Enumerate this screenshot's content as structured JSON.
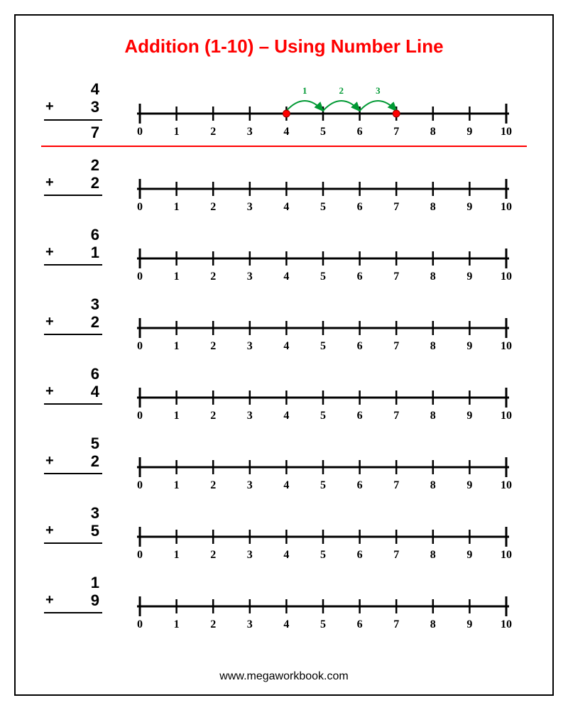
{
  "title": "Addition (1-10) – Using Number Line",
  "footer": "www.megaworkbook.com",
  "colors": {
    "title": "#ff0000",
    "divider": "#ff0000",
    "line": "#000000",
    "jump_arc": "#009933",
    "jump_label": "#009933",
    "dot": "#ff0000",
    "background": "#ffffff"
  },
  "number_line": {
    "min": 0,
    "max": 10,
    "tick_step": 1,
    "line_width": 3,
    "tick_half_height": 10,
    "label_fontsize": 16
  },
  "example": {
    "a": 4,
    "b": 3,
    "answer": 7,
    "jump_start": 4,
    "jump_end": 7,
    "jump_labels": [
      "1",
      "2",
      "3"
    ],
    "dot_radius": 5
  },
  "problems": [
    {
      "a": 2,
      "b": 2
    },
    {
      "a": 6,
      "b": 1
    },
    {
      "a": 3,
      "b": 2
    },
    {
      "a": 6,
      "b": 4
    },
    {
      "a": 5,
      "b": 2
    },
    {
      "a": 3,
      "b": 5
    },
    {
      "a": 1,
      "b": 9
    }
  ],
  "typography": {
    "title_fontsize": 26,
    "problem_fontsize": 22,
    "footer_fontsize": 16,
    "font_family": "Comic Sans MS"
  }
}
